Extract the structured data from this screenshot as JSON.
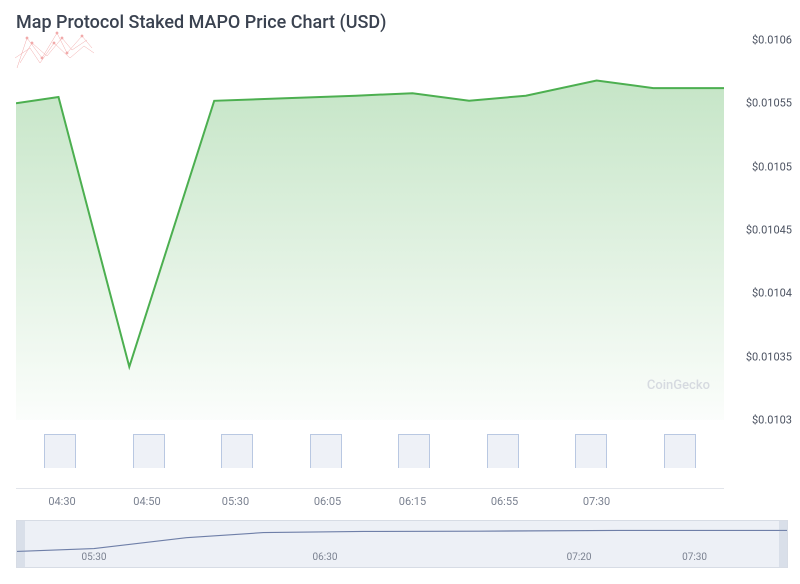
{
  "title": "Map Protocol Staked MAPO Price Chart (USD)",
  "watermark": "CoinGecko",
  "chart": {
    "type": "area",
    "line_color": "#4caf50",
    "line_width": 2,
    "fill_top": "rgba(76,175,80,0.32)",
    "fill_bottom": "rgba(76,175,80,0.02)",
    "background_color": "#ffffff",
    "ylim": [
      0.0103,
      0.0106
    ],
    "ytick_step": 5e-05,
    "y_ticks": [
      "$0.0106",
      "$0.01055",
      "$0.0105",
      "$0.01045",
      "$0.0104",
      "$0.01035",
      "$0.0103"
    ],
    "x_labels": [
      "04:30",
      "04:50",
      "05:30",
      "06:05",
      "06:15",
      "06:55",
      "07:30"
    ],
    "x_positions_pct": [
      6.5,
      18.5,
      31,
      44,
      56,
      69,
      82
    ],
    "points": [
      {
        "x": 0,
        "y": 0.01055
      },
      {
        "x": 6,
        "y": 0.010555
      },
      {
        "x": 16,
        "y": 0.010342
      },
      {
        "x": 28,
        "y": 0.010552
      },
      {
        "x": 38,
        "y": 0.010554
      },
      {
        "x": 48,
        "y": 0.010556
      },
      {
        "x": 56,
        "y": 0.010558
      },
      {
        "x": 64,
        "y": 0.010552
      },
      {
        "x": 72,
        "y": 0.010556
      },
      {
        "x": 82,
        "y": 0.010568
      },
      {
        "x": 90,
        "y": 0.010562
      },
      {
        "x": 100,
        "y": 0.010562
      }
    ]
  },
  "volume": {
    "bar_fill": "#eef1f7",
    "bar_border": "#b9c8e2",
    "positions_pct": [
      4,
      16.5,
      29,
      41.5,
      54,
      66.5,
      79,
      91.5
    ]
  },
  "navigator": {
    "background": "#edf0f6",
    "border": "#d7dce5",
    "line_color": "#6f7fa8",
    "x_labels": [
      "05:30",
      "06:30",
      "07:20",
      "07:30"
    ],
    "x_positions_pct": [
      10,
      40,
      73,
      88
    ],
    "points": [
      {
        "x": 0,
        "y": 0.32
      },
      {
        "x": 10,
        "y": 0.4
      },
      {
        "x": 22,
        "y": 0.7
      },
      {
        "x": 32,
        "y": 0.84
      },
      {
        "x": 45,
        "y": 0.87
      },
      {
        "x": 60,
        "y": 0.88
      },
      {
        "x": 78,
        "y": 0.9
      },
      {
        "x": 100,
        "y": 0.9
      }
    ]
  }
}
